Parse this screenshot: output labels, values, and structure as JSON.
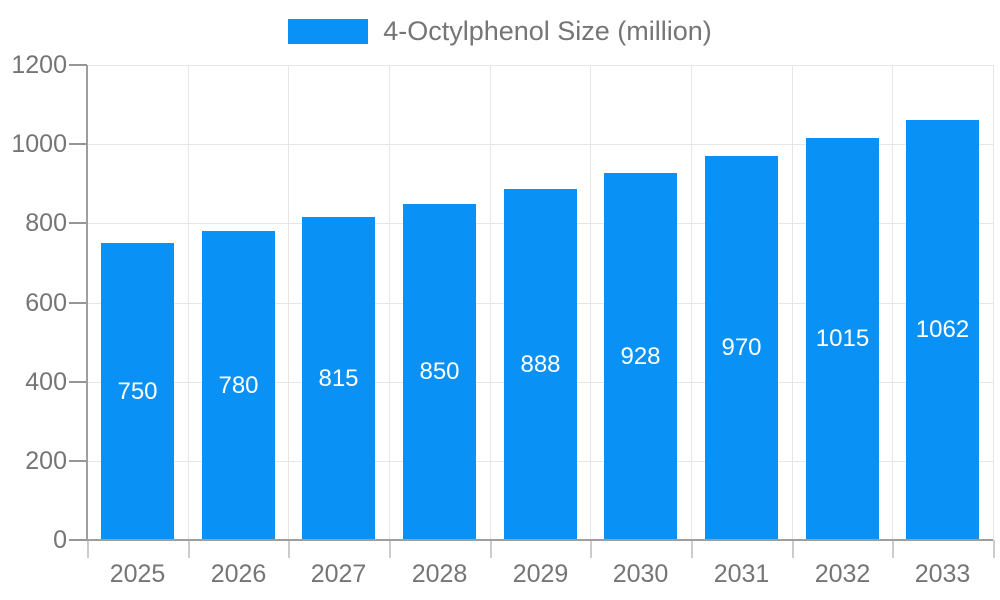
{
  "legend": {
    "label": "4-Octylphenol Size (million)"
  },
  "chart_data": {
    "type": "bar",
    "title": "",
    "series_name": "4-Octylphenol Size (million)",
    "categories": [
      "2025",
      "2026",
      "2027",
      "2028",
      "2029",
      "2030",
      "2031",
      "2032",
      "2033"
    ],
    "values": [
      750,
      780,
      815,
      850,
      888,
      928,
      970,
      1015,
      1062
    ],
    "bar_labels": [
      "750",
      "780",
      "815",
      "850",
      "888",
      "928",
      "970",
      "1015",
      "1062"
    ],
    "xlabel": "",
    "ylabel": "",
    "ylim": [
      0,
      1200
    ],
    "yticks": [
      0,
      200,
      400,
      600,
      800,
      1000,
      1200
    ],
    "grid": true,
    "legend_position": "top",
    "bar_labels_position": "center-inside"
  },
  "colors": {
    "bar": "#0991f5",
    "bar_label": "#ffffff",
    "axis_line": "#9e9e9e",
    "grid_line": "#e6e6e6",
    "y_tick": "#969696",
    "x_tick": "#cccccc",
    "text": "#757575",
    "background": "#ffffff"
  }
}
